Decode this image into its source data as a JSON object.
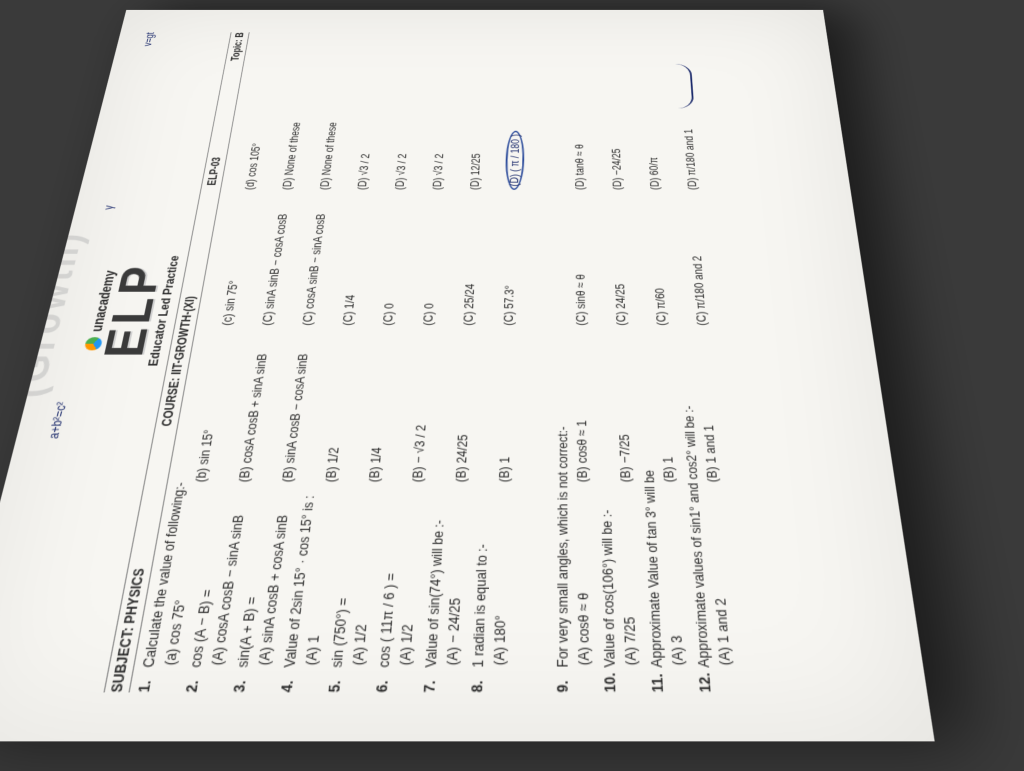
{
  "watermark": "(Growth)",
  "scribble": {
    "left": "π",
    "mid": "a+b²=c²",
    "right": "γ",
    "far": "v=gt"
  },
  "brand": "unacademy",
  "elp": "ELP",
  "sub": "Educator Led Practice",
  "bar": {
    "subject_label": "SUBJECT: PHYSICS",
    "course_label": "COURSE: IIT-GROWTH-(XI)",
    "elp_no": "ELP-03",
    "topic": "Topic: B"
  },
  "questions": [
    {
      "num": "1.",
      "text": "Calculate the value of following:-",
      "sub": [
        "(a) cos 75°",
        "(b) sin 15°",
        "(c) sin 75°",
        "(d) cos 105°"
      ]
    },
    {
      "num": "2.",
      "text": "cos (A − B) =",
      "opts": [
        "(A) cosA cosB − sinA sinB",
        "(B) cosA cosB + sinA sinB",
        "(C) sinA sinB − cosA cosB",
        "(D) None of these"
      ]
    },
    {
      "num": "3.",
      "text": "sin(A + B) =",
      "opts": [
        "(A) sinA cosB + cosA sinB",
        "(B) sinA cosB − cosA sinB",
        "(C) cosA sinB − sinA cosB",
        "(D) None of these"
      ]
    },
    {
      "num": "4.",
      "text": "Value of 2sin 15° · cos 15° is :",
      "opts": [
        "(A) 1",
        "(B) 1/2",
        "(C) 1/4",
        "(D) √3 / 2"
      ]
    },
    {
      "num": "5.",
      "text": "sin (750°) =",
      "opts": [
        "(A) 1/2",
        "(B) 1/4",
        "(C) 0",
        "(D) √3 / 2"
      ]
    },
    {
      "num": "6.",
      "text": "cos ( 11π / 6 ) =",
      "opts": [
        "(A) 1/2",
        "(B) − √3 / 2",
        "(C) 0",
        "(D) √3 / 2"
      ]
    },
    {
      "num": "7.",
      "text": "Value of sin(74°) will be :-",
      "opts": [
        "(A) − 24/25",
        "(B) 24/25",
        "(C) 25/24",
        "(D) 12/25"
      ]
    },
    {
      "num": "8.",
      "text": "1 radian is equal to :-",
      "opts": [
        "(A) 180°",
        "(B) 1",
        "(C) 57.3°",
        "(D)  ( π / 180 )",
        ""
      ],
      "circled": 3
    },
    {
      "num": "9.",
      "text": "For very small angles, which is not correct:-",
      "opts": [
        "(A) cosθ ≈ θ",
        "(B) cosθ ≈ 1",
        "(C) sinθ ≈ θ",
        "(D) tanθ ≈ θ"
      ]
    },
    {
      "num": "10.",
      "text": "Value of cos(106°) will be :-",
      "opts": [
        "(A) 7/25",
        "(B) −7/25",
        "(C) 24/25",
        "(D) −24/25"
      ]
    },
    {
      "num": "11.",
      "text": "Approximate Value of tan 3° will be",
      "opts": [
        "(A) 3",
        "(B) 1",
        "(C) π/60",
        "(D) 60/π"
      ]
    },
    {
      "num": "12.",
      "text": "Approximate values of sin1° and cos2° will be :-",
      "opts": [
        "(A) 1 and 2",
        "(B) 1 and 1",
        "(C) π/180 and 2",
        "(D) π/180 and 1"
      ]
    }
  ],
  "colors": {
    "paper": "#f7f6f2",
    "text": "#2b2b2b",
    "ink": "#1b2a6b",
    "bg": "#3a3a3a"
  }
}
